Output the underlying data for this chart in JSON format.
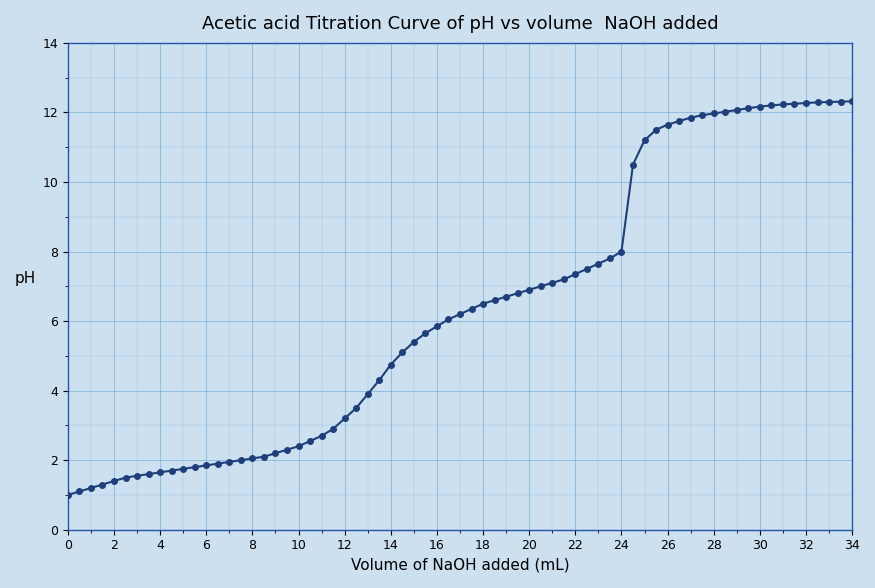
{
  "title": "Acetic acid Titration Curve of pH vs volume  NaOH added",
  "xlabel": "Volume of NaOH added (mL)",
  "ylabel": "pH",
  "xlim": [
    0,
    34
  ],
  "ylim": [
    0,
    14
  ],
  "xticks": [
    0,
    2,
    4,
    6,
    8,
    10,
    12,
    14,
    16,
    18,
    20,
    22,
    24,
    26,
    28,
    30,
    32,
    34
  ],
  "yticks": [
    0,
    2,
    4,
    6,
    8,
    10,
    12,
    14
  ],
  "line_color": "#1f3f7a",
  "marker_color": "#1f3f7a",
  "bg_color": "#cce0f0",
  "grid_color": "#5599cc",
  "x_data": [
    0,
    0.5,
    1,
    1.5,
    2,
    2.5,
    3,
    3.5,
    4,
    4.5,
    5,
    5.5,
    6,
    6.5,
    7,
    7.5,
    8,
    8.5,
    9,
    9.5,
    10,
    10.5,
    11,
    11.5,
    12,
    12.5,
    13,
    13.5,
    14,
    14.5,
    15,
    15.5,
    16,
    16.5,
    17,
    17.5,
    18,
    18.5,
    19,
    19.5,
    20,
    20.5,
    21,
    21.5,
    22,
    22.5,
    23,
    23.5,
    24,
    24.5,
    25,
    25.5,
    26,
    26.5,
    27,
    27.5,
    28,
    28.5,
    29,
    29.5,
    30,
    30.5,
    31,
    31.5,
    32,
    32.5,
    33,
    33.5,
    34
  ],
  "y_data": [
    1.0,
    1.1,
    1.2,
    1.3,
    1.4,
    1.5,
    1.55,
    1.6,
    1.65,
    1.7,
    1.75,
    1.8,
    1.85,
    1.9,
    1.95,
    2.0,
    2.05,
    2.1,
    2.2,
    2.3,
    2.4,
    2.55,
    2.7,
    2.9,
    3.2,
    3.5,
    3.9,
    4.3,
    4.75,
    5.1,
    5.4,
    5.65,
    5.85,
    6.05,
    6.2,
    6.35,
    6.5,
    6.6,
    6.7,
    6.8,
    6.9,
    7.0,
    7.1,
    7.2,
    7.35,
    7.5,
    7.65,
    7.8,
    8.0,
    10.5,
    11.2,
    11.5,
    11.65,
    11.75,
    11.85,
    11.92,
    11.97,
    12.02,
    12.07,
    12.12,
    12.17,
    12.2,
    12.23,
    12.25,
    12.27,
    12.29,
    12.3,
    12.31,
    12.32
  ]
}
